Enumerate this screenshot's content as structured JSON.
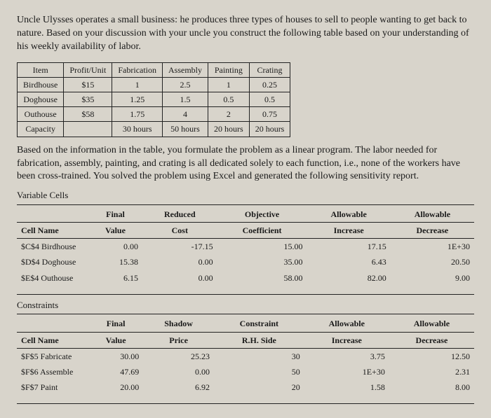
{
  "intro": "Uncle Ulysses operates a small business: he produces three types of houses to sell to people wanting to get back to nature. Based on your discussion with your uncle you construct the following table based on your understanding of his weekly availability of labor.",
  "prod_table": {
    "columns": [
      "Item",
      "Profit/Unit",
      "Fabrication",
      "Assembly",
      "Painting",
      "Crating"
    ],
    "rows": [
      [
        "Birdhouse",
        "$15",
        "1",
        "2.5",
        "1",
        "0.25"
      ],
      [
        "Doghouse",
        "$35",
        "1.25",
        "1.5",
        "0.5",
        "0.5"
      ],
      [
        "Outhouse",
        "$58",
        "1.75",
        "4",
        "2",
        "0.75"
      ],
      [
        "Capacity",
        "",
        "30 hours",
        "50 hours",
        "20 hours",
        "20 hours"
      ]
    ],
    "border_color": "#222222",
    "background_color": "#d8d4cb",
    "font_size": 12
  },
  "mid": "Based on the information in the table, you formulate the problem as a linear program. The labor needed for fabrication, assembly, painting, and crating is all dedicated solely to each function, i.e., none of the workers have been cross-trained. You solved the problem using Excel and generated the following sensitivity report.",
  "var_label": "Variable Cells",
  "var_table": {
    "head1": [
      "",
      "Final",
      "Reduced",
      "Objective",
      "Allowable",
      "Allowable"
    ],
    "head2": [
      "Cell    Name",
      "Value",
      "Cost",
      "Coefficient",
      "Increase",
      "Decrease"
    ],
    "rows": [
      [
        "$C$4 Birdhouse",
        "0.00",
        "-17.15",
        "15.00",
        "17.15",
        "1E+30"
      ],
      [
        "$D$4 Doghouse",
        "15.38",
        "0.00",
        "35.00",
        "6.43",
        "20.50"
      ],
      [
        "$E$4 Outhouse",
        "6.15",
        "0.00",
        "58.00",
        "82.00",
        "9.00"
      ]
    ],
    "font_size": 12
  },
  "con_label": "Constraints",
  "con_table": {
    "head1": [
      "",
      "Final",
      "Shadow",
      "Constraint",
      "Allowable",
      "Allowable"
    ],
    "head2": [
      "Cell    Name",
      "Value",
      "Price",
      "R.H. Side",
      "Increase",
      "Decrease"
    ],
    "rows": [
      [
        "$F$5 Fabricate",
        "30.00",
        "25.23",
        "30",
        "3.75",
        "12.50"
      ],
      [
        "$F$6 Assemble",
        "47.69",
        "0.00",
        "50",
        "1E+30",
        "2.31"
      ],
      [
        "$F$7 Paint",
        "20.00",
        "6.92",
        "20",
        "1.58",
        "8.00"
      ]
    ],
    "font_size": 12
  },
  "colors": {
    "background": "#d8d4cb",
    "text": "#1a1a1a",
    "border": "#222222"
  }
}
